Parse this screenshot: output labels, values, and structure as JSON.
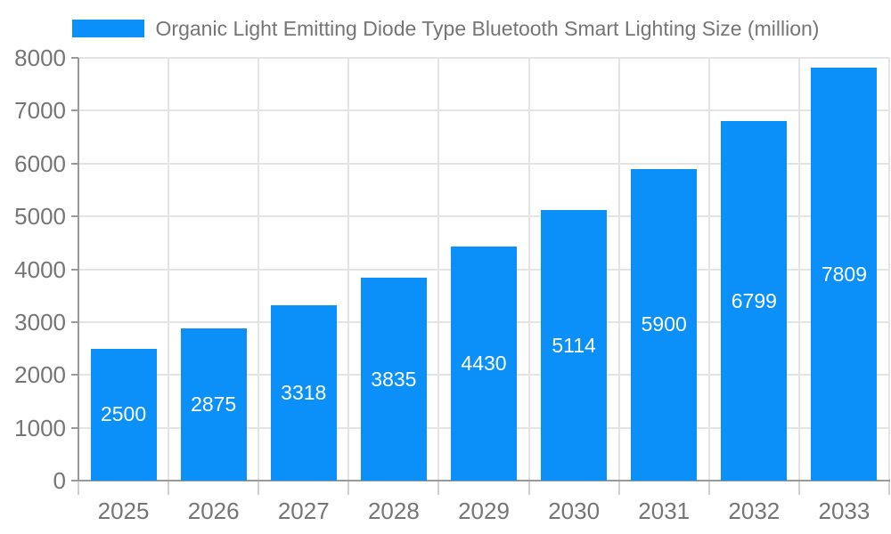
{
  "legend": {
    "label": "Organic Light Emitting Diode Type Bluetooth Smart Lighting Size (million)"
  },
  "colors": {
    "bar": "#0a90f8",
    "grid": "#e4e4e4",
    "axis_line": "#9a9a9a",
    "tick": "#d0d0d0",
    "axis_label": "#757575",
    "value_label": "#ffffff",
    "background": "#ffffff"
  },
  "chart_data": {
    "type": "bar",
    "title": "Organic Light Emitting Diode Type Bluetooth Smart Lighting Size (million)",
    "categories": [
      "2025",
      "2026",
      "2027",
      "2028",
      "2029",
      "2030",
      "2031",
      "2032",
      "2033"
    ],
    "values": [
      2500,
      2875,
      3318,
      3835,
      4430,
      5114,
      5900,
      6799,
      7809
    ],
    "xlabel": "",
    "ylabel": "",
    "ylim": [
      0,
      8000
    ],
    "yticks": [
      0,
      1000,
      2000,
      3000,
      4000,
      5000,
      6000,
      7000,
      8000
    ],
    "grid": true,
    "legend_position": "top-center",
    "bar_label_position": "inside-center"
  }
}
